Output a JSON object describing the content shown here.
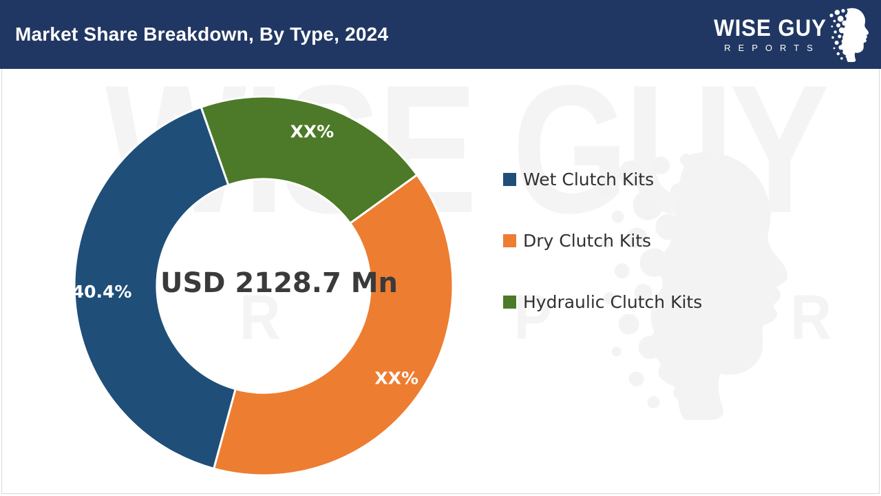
{
  "header": {
    "title": "Market Share Breakdown, By Type, 2024",
    "logo": {
      "line1": "WISE GUY",
      "line2": "REPORTS"
    }
  },
  "watermark": {
    "line1": "WISE GUY",
    "line2": "REPORTS"
  },
  "chart_data": {
    "type": "pie",
    "subtype": "donut",
    "title": "Market Share Breakdown, By Type, 2024",
    "center_label": "USD 2128.7 Mn",
    "start_angle_deg": -19.3,
    "direction": "clockwise",
    "inner_radius_ratio": 0.564,
    "legend_position": "right",
    "series": [
      {
        "name": "Hydraulic Clutch Kits",
        "label": "XX%",
        "arc_pct": 20.4,
        "color": "#4C7A28"
      },
      {
        "name": "Dry Clutch Kits",
        "label": "XX%",
        "arc_pct": 39.2,
        "color": "#ED7D31"
      },
      {
        "name": "Wet Clutch Kits",
        "label": "40.4%",
        "arc_pct": 40.4,
        "color": "#1F4E78"
      }
    ]
  },
  "legend": {
    "items": [
      {
        "label": "Wet Clutch Kits",
        "color": "#1F4E78"
      },
      {
        "label": "Dry Clutch Kits",
        "color": "#ED7D31"
      },
      {
        "label": "Hydraulic Clutch Kits",
        "color": "#4C7A28"
      }
    ]
  },
  "colors": {
    "header_bg": "#213763",
    "header_text": "#ffffff",
    "center_text": "#3a3a3a",
    "watermark": "#f4f4f4",
    "border": "#d9d9d9"
  }
}
